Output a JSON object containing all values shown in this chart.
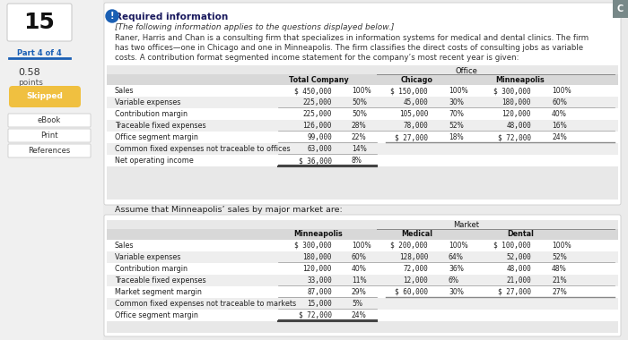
{
  "page_number": "15",
  "part": "Part 4 of 4",
  "points": "0.58",
  "points_label": "points",
  "badge_text": "Skipped",
  "badge_color": "#f0c040",
  "left_buttons": [
    "eBook",
    "Print",
    "References"
  ],
  "info_icon_color": "#1a5fb4",
  "section_title": "Required information",
  "section_italic": "[The following information applies to the questions displayed below.]",
  "body_lines": [
    "Raner, Harris and Chan is a consulting firm that specializes in information systems for medical and dental clinics. The firm",
    "has two offices—one in Chicago and one in Minneapolis. The firm classifies the direct costs of consulting jobs as variable",
    "costs. A contribution format segmented income statement for the company’s most recent year is given:"
  ],
  "table1_col_label": "Office",
  "table1_col_headers": [
    "Total Company",
    "Chicago",
    "Minneapolis"
  ],
  "table1_rows": [
    [
      "Sales",
      "$ 450,000",
      "100%",
      "$ 150,000",
      "100%",
      "$ 300,000",
      "100%"
    ],
    [
      "Variable expenses",
      "225,000",
      "50%",
      "45,000",
      "30%",
      "180,000",
      "60%"
    ],
    [
      "Contribution margin",
      "225,000",
      "50%",
      "105,000",
      "70%",
      "120,000",
      "40%"
    ],
    [
      "Traceable fixed expenses",
      "126,000",
      "28%",
      "78,000",
      "52%",
      "48,000",
      "16%"
    ],
    [
      "Office segment margin",
      "99,000",
      "22%",
      "$ 27,000",
      "18%",
      "$ 72,000",
      "24%"
    ],
    [
      "Common fixed expenses not traceable to offices",
      "63,000",
      "14%",
      "",
      "",
      "",
      ""
    ],
    [
      "Net operating income",
      "$ 36,000",
      "8%",
      "",
      "",
      "",
      ""
    ]
  ],
  "assume_text": "Assume that Minneapolis’ sales by major market are:",
  "table2_col_label": "Market",
  "table2_col_headers": [
    "Minneapolis",
    "Medical",
    "Dental"
  ],
  "table2_rows": [
    [
      "Sales",
      "$ 300,000",
      "100%",
      "$ 200,000",
      "100%",
      "$ 100,000",
      "100%"
    ],
    [
      "Variable expenses",
      "180,000",
      "60%",
      "128,000",
      "64%",
      "52,000",
      "52%"
    ],
    [
      "Contribution margin",
      "120,000",
      "40%",
      "72,000",
      "36%",
      "48,000",
      "48%"
    ],
    [
      "Traceable fixed expenses",
      "33,000",
      "11%",
      "12,000",
      "6%",
      "21,000",
      "21%"
    ],
    [
      "Market segment margin",
      "87,000",
      "29%",
      "$ 60,000",
      "30%",
      "$ 27,000",
      "27%"
    ],
    [
      "Common fixed expenses not traceable to markets",
      "15,000",
      "5%",
      "",
      "",
      "",
      ""
    ],
    [
      "Office segment margin",
      "$ 72,000",
      "24%",
      "",
      "",
      "",
      ""
    ]
  ],
  "bg_color": "#ebebeb",
  "panel_color": "#f5f5f5",
  "corner_btn_color": "#7a8a8a",
  "text_color": "#222222",
  "title_color": "#1a1a5e"
}
